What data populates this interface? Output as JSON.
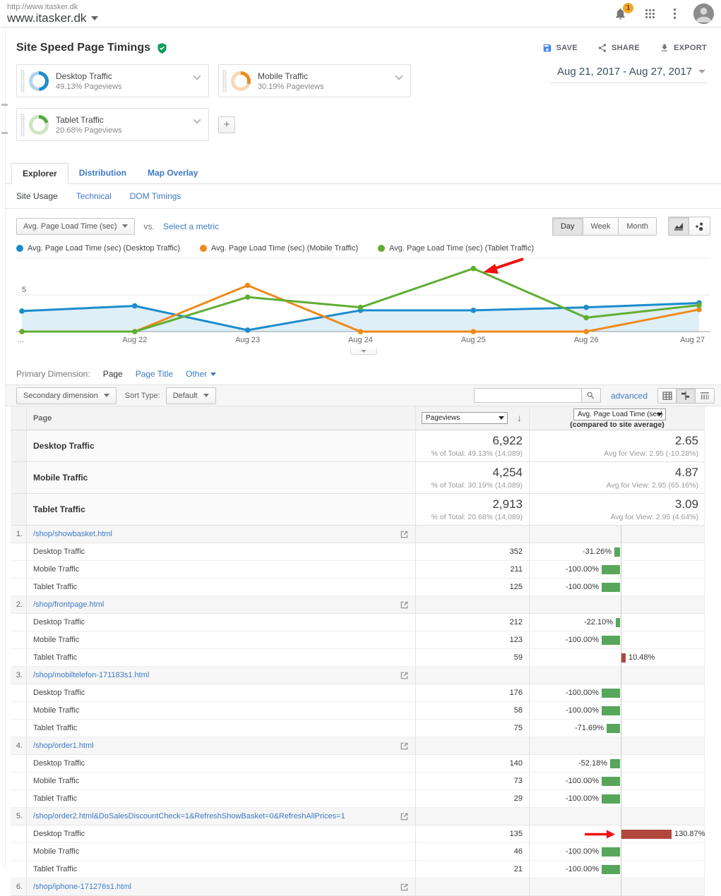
{
  "topbar": {
    "property_url": "http://www.itasker.dk",
    "account_name": "www.itasker.dk",
    "notification_count": "1"
  },
  "title_bar": {
    "title": "Site Speed Page Timings",
    "save_label": "SAVE",
    "share_label": "SHARE",
    "export_label": "EXPORT"
  },
  "segments": {
    "cards": [
      {
        "title": "Desktop Traffic",
        "subtitle": "49.13% Pageviews",
        "pct": 49.13,
        "color": "#1c8ccc",
        "color_light": "#b0d5ec"
      },
      {
        "title": "Mobile Traffic",
        "subtitle": "30.19% Pageviews",
        "pct": 30.19,
        "color": "#ef8a1c",
        "color_light": "#f7d8b4"
      },
      {
        "title": "Tablet Traffic",
        "subtitle": "20.68% Pageviews",
        "pct": 20.68,
        "color": "#54a83c",
        "color_light": "#cde6c3"
      }
    ],
    "add_label": "+"
  },
  "date_range": "Aug 21, 2017 - Aug 27, 2017",
  "tabs": {
    "items": [
      {
        "label": "Explorer"
      },
      {
        "label": "Distribution"
      },
      {
        "label": "Map Overlay"
      }
    ],
    "active": "Explorer"
  },
  "subtabs": {
    "items": [
      {
        "label": "Site Usage"
      },
      {
        "label": "Technical"
      },
      {
        "label": "DOM Timings"
      }
    ],
    "active": "Site Usage"
  },
  "metric_bar": {
    "metric_select": "Avg. Page Load Time (sec)",
    "vs_label": "vs.",
    "select_metric_label": "Select a metric",
    "granularity": [
      {
        "label": "Day"
      },
      {
        "label": "Week"
      },
      {
        "label": "Month"
      }
    ],
    "active_granularity": "Day"
  },
  "chart_data": {
    "type": "line",
    "x_labels": [
      "...",
      "Aug 22",
      "Aug 23",
      "Aug 24",
      "Aug 25",
      "Aug 26",
      "Aug 27"
    ],
    "ylim": [
      0,
      10
    ],
    "yticks": [
      5,
      10
    ],
    "grid": true,
    "legend_position": "top",
    "series": [
      {
        "name": "Avg. Page Load Time (sec) (Desktop Traffic)",
        "color": "#1c8ccc",
        "area": true,
        "values": [
          2.8,
          3.5,
          0.2,
          2.9,
          2.9,
          3.3,
          3.9
        ]
      },
      {
        "name": "Avg. Page Load Time (sec) (Mobile Traffic)",
        "color": "#ef8a1c",
        "area": false,
        "values": [
          0,
          0,
          6.3,
          0,
          0,
          0,
          3.0
        ]
      },
      {
        "name": "Avg. Page Load Time (sec) (Tablet Traffic)",
        "color": "#61ad33",
        "area": false,
        "values": [
          0,
          0,
          4.7,
          3.3,
          8.6,
          1.9,
          3.6
        ]
      }
    ],
    "annotation": {
      "type": "arrow",
      "color": "#ee1111",
      "target": "Tablet Traffic peak on Aug 25"
    }
  },
  "primary_dimension": {
    "label": "Primary Dimension:",
    "options": [
      {
        "label": "Page"
      },
      {
        "label": "Page Title"
      },
      {
        "label": "Other"
      }
    ],
    "active": "Page"
  },
  "table_toolbar": {
    "secondary_dimension_label": "Secondary dimension",
    "sort_type_label": "Sort Type:",
    "sort_value": "Default",
    "search_placeholder": "",
    "advanced_label": "advanced"
  },
  "table": {
    "columns": {
      "page": "Page",
      "pageviews": "Pageviews",
      "metric": "Avg. Page Load Time (sec)",
      "metric_sub": "(compared to site average)"
    },
    "bar_colors": {
      "negative": "#57a65b",
      "positive": "#b0473c"
    },
    "arrow_color": "#ee1111",
    "summary_rows": [
      {
        "label": "Desktop Traffic",
        "pageviews": "6,922",
        "pageviews_sub": "% of Total: 49.13% (14,089)",
        "metric": "2.65",
        "metric_sub": "Avg for View: 2.95 (-10.28%)"
      },
      {
        "label": "Mobile Traffic",
        "pageviews": "4,254",
        "pageviews_sub": "% of Total: 30.19% (14,089)",
        "metric": "4.87",
        "metric_sub": "Avg for View: 2.95 (65.16%)"
      },
      {
        "label": "Tablet Traffic",
        "pageviews": "2,913",
        "pageviews_sub": "% of Total: 20.68% (14,089)",
        "metric": "3.09",
        "metric_sub": "Avg for View: 2.95 (4.64%)"
      }
    ],
    "groups": [
      {
        "num": "1.",
        "page": "/shop/showbasket.html",
        "rows": [
          {
            "label": "Desktop Traffic",
            "pageviews": "352",
            "delta_pct": -31.26,
            "delta_label": "-31.26%"
          },
          {
            "label": "Mobile Traffic",
            "pageviews": "211",
            "delta_pct": -100,
            "delta_label": "-100.00%"
          },
          {
            "label": "Tablet Traffic",
            "pageviews": "125",
            "delta_pct": -100,
            "delta_label": "-100.00%"
          }
        ]
      },
      {
        "num": "2.",
        "page": "/shop/frontpage.html",
        "rows": [
          {
            "label": "Desktop Traffic",
            "pageviews": "212",
            "delta_pct": -22.1,
            "delta_label": "-22.10%"
          },
          {
            "label": "Mobile Traffic",
            "pageviews": "123",
            "delta_pct": -100,
            "delta_label": "-100.00%"
          },
          {
            "label": "Tablet Traffic",
            "pageviews": "59",
            "delta_pct": 10.48,
            "delta_label": "10.48%"
          }
        ]
      },
      {
        "num": "3.",
        "page": "/shop/mobiltelefon-171183s1.html",
        "rows": [
          {
            "label": "Desktop Traffic",
            "pageviews": "176",
            "delta_pct": -100,
            "delta_label": "-100.00%"
          },
          {
            "label": "Mobile Traffic",
            "pageviews": "58",
            "delta_pct": -100,
            "delta_label": "-100.00%"
          },
          {
            "label": "Tablet Traffic",
            "pageviews": "75",
            "delta_pct": -71.69,
            "delta_label": "-71.69%"
          }
        ]
      },
      {
        "num": "4.",
        "page": "/shop/order1.html",
        "rows": [
          {
            "label": "Desktop Traffic",
            "pageviews": "140",
            "delta_pct": -52.18,
            "delta_label": "-52.18%"
          },
          {
            "label": "Mobile Traffic",
            "pageviews": "73",
            "delta_pct": -100,
            "delta_label": "-100.00%"
          },
          {
            "label": "Tablet Traffic",
            "pageviews": "29",
            "delta_pct": -100,
            "delta_label": "-100.00%"
          }
        ]
      },
      {
        "num": "5.",
        "page": "/shop/order2.html&DoSalesDiscountCheck=1&RefreshShowBasket=0&RefreshAllPrices=1",
        "rows": [
          {
            "label": "Desktop Traffic",
            "pageviews": "135",
            "delta_pct": 130.87,
            "delta_label": "130.87%",
            "arrow": true
          },
          {
            "label": "Mobile Traffic",
            "pageviews": "46",
            "delta_pct": -100,
            "delta_label": "-100.00%"
          },
          {
            "label": "Tablet Traffic",
            "pageviews": "21",
            "delta_pct": -100,
            "delta_label": "-100.00%"
          }
        ]
      },
      {
        "num": "6.",
        "page": "/shop/iphone-171276s1.html",
        "rows": []
      }
    ]
  }
}
